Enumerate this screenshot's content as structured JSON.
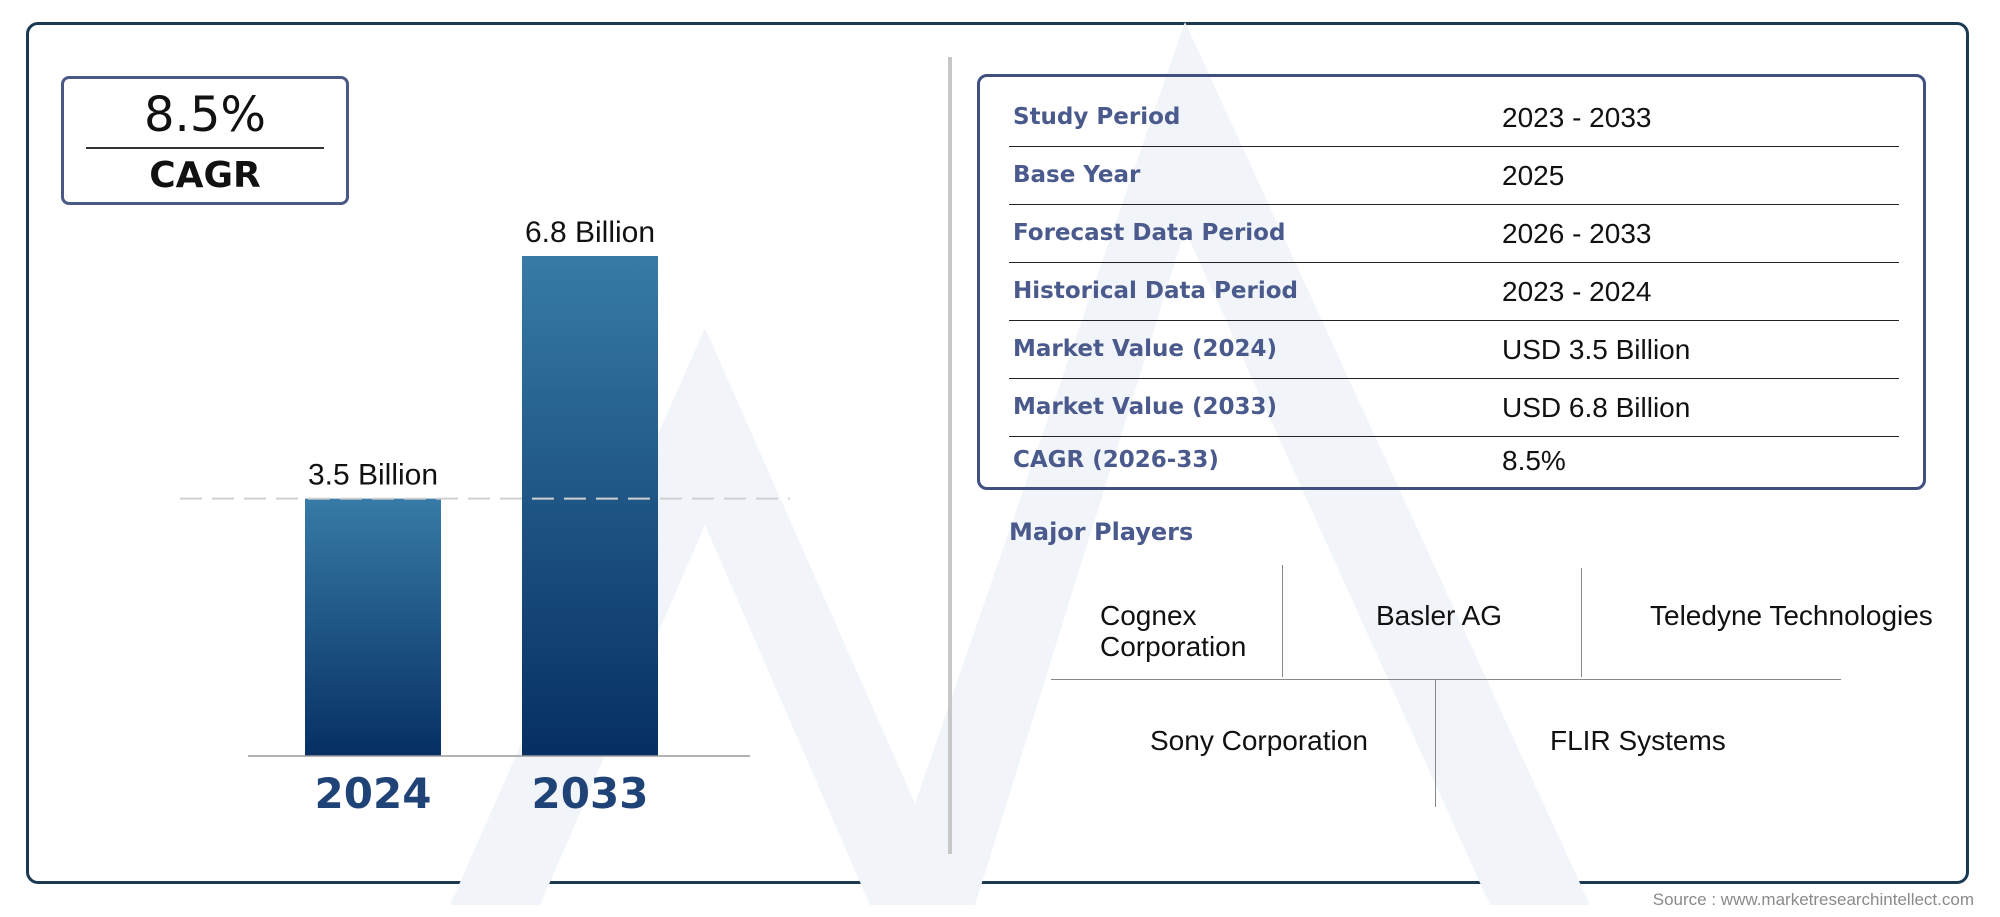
{
  "cagr_card": {
    "value": "8.5%",
    "label": "CAGR"
  },
  "chart_data": {
    "type": "bar",
    "categories": [
      "2024",
      "2033"
    ],
    "values": [
      3.5,
      6.8
    ],
    "data_labels": [
      "3.5 Billion",
      "6.8 Billion"
    ],
    "title": "",
    "xlabel": "",
    "ylabel": "",
    "ylim": [
      0,
      6.8
    ],
    "grid": false,
    "reference_line": 3.5,
    "bar_color_top": "#377ba6",
    "bar_color_bottom": "#062f63",
    "tick_color": "#1f4377"
  },
  "info_table": [
    {
      "key": "Study Period",
      "value": "2023 - 2033"
    },
    {
      "key": "Base Year",
      "value": "2025"
    },
    {
      "key": "Forecast Data Period",
      "value": "2026 - 2033"
    },
    {
      "key": "Historical Data Period",
      "value": "2023 - 2024"
    },
    {
      "key": "Market Value (2024)",
      "value": "USD 3.5 Billion"
    },
    {
      "key": "Market Value (2033)",
      "value": "USD 6.8 Billion"
    },
    {
      "key": "CAGR (2026-33)",
      "value": "8.5%"
    }
  ],
  "players": {
    "title": "Major Players",
    "items": [
      "Cognex Corporation",
      "Basler AG",
      "Teledyne Technologies",
      "Sony Corporation",
      "FLIR Systems"
    ]
  },
  "source": "Source : www.marketresearchintellect.com",
  "colors": {
    "frame": "#1b3a52",
    "accent": "#4a5a8c"
  }
}
